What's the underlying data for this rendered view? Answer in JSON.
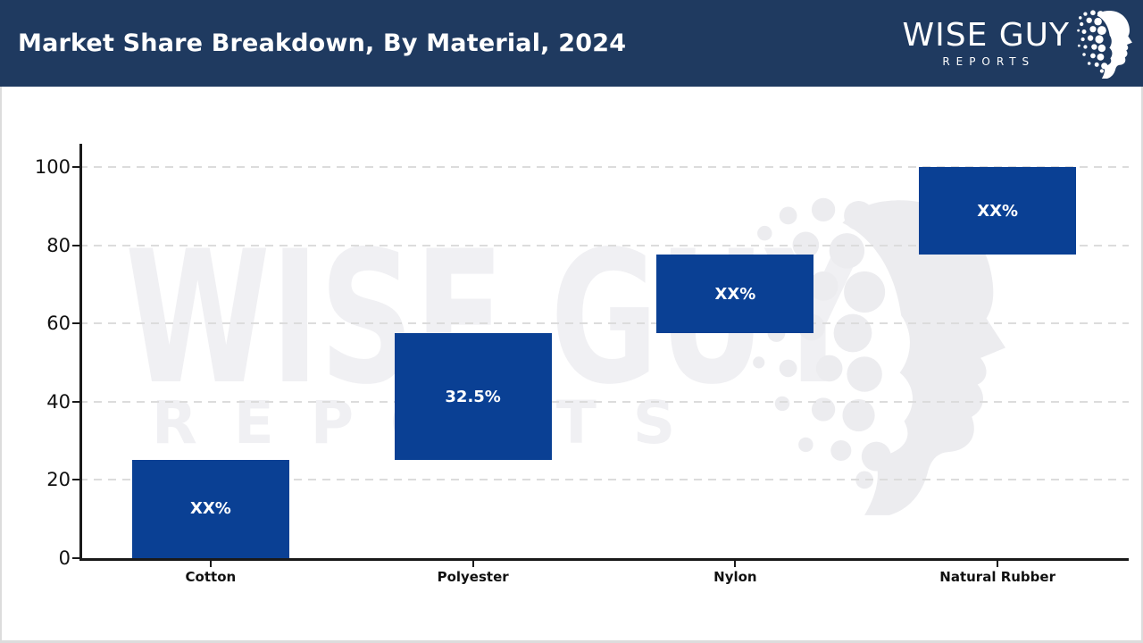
{
  "header": {
    "title": "Market Share Breakdown, By Material, 2024",
    "logo": {
      "wordmark": "WISE GUY",
      "reports": "REPORTS"
    }
  },
  "watermark": {
    "wordmark": "WISE GUY",
    "reports": "REPORTS"
  },
  "colors": {
    "header_bg": "#1F3A60",
    "bar": "#0A4094",
    "bar_label": "#FFFFFF",
    "grid": "#DCDCDC",
    "axis": "#1A1A1A",
    "watermark": "#F0F0F3",
    "watermark_dots": "#ECECEF",
    "frame": "#DCDCDC"
  },
  "chart_data": {
    "type": "bar",
    "subtype": "waterfall",
    "title": "Market Share Breakdown, By Material, 2024",
    "categories": [
      "Cotton",
      "Polyester",
      "Nylon",
      "Natural Rubber"
    ],
    "bars": [
      {
        "category": "Cotton",
        "start": 0,
        "end": 25,
        "label": "XX%"
      },
      {
        "category": "Polyester",
        "start": 25,
        "end": 57.5,
        "label": "32.5%"
      },
      {
        "category": "Nylon",
        "start": 57.5,
        "end": 77.5,
        "label": "XX%"
      },
      {
        "category": "Natural Rubber",
        "start": 77.5,
        "end": 100,
        "label": "XX%"
      }
    ],
    "ylim": [
      0,
      100
    ],
    "yticks": [
      0,
      20,
      40,
      60,
      80,
      100
    ],
    "xlabel": "",
    "ylabel": "",
    "grid": "horizontal-dashed",
    "legend": null
  }
}
